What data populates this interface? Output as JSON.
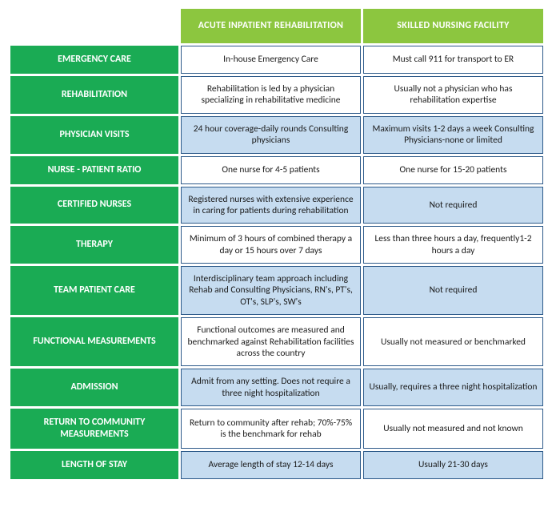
{
  "colors": {
    "header_green": "#8cc63f",
    "row_header_green": "#1aab54",
    "cell_border": "#2d5a8a",
    "cell_bg_white": "#ffffff",
    "cell_bg_blue": "#c6dcf0",
    "text": "#1a1a1a",
    "header_text": "#ffffff"
  },
  "columns": [
    "ACUTE INPATIENT REHABILITATION",
    "SKILLED NURSING FACILITY"
  ],
  "rows": [
    {
      "label": "EMERGENCY CARE",
      "cells": [
        "In-house Emergency Care",
        "Must call 911 for transport to ER"
      ],
      "shade": "white"
    },
    {
      "label": "REHABILITATION",
      "cells": [
        "Rehabilitation is led by a physician specializing in rehabilitative medicine",
        "Usually not a physician who has rehabilitation expertise"
      ],
      "shade": "white"
    },
    {
      "label": "PHYSICIAN VISITS",
      "cells": [
        "24 hour coverage-daily rounds Consulting physicians",
        "Maximum visits 1-2 days a week Consulting Physicians-none or limited"
      ],
      "shade": "blue"
    },
    {
      "label": "NURSE - PATIENT RATIO",
      "cells": [
        "One nurse for 4-5 patients",
        "One nurse for 15-20 patients"
      ],
      "shade": "white"
    },
    {
      "label": "CERTIFIED NURSES",
      "cells": [
        "Registered nurses with extensive experience in caring for patients during rehabilitation",
        "Not required"
      ],
      "shade": "blue"
    },
    {
      "label": "THERAPY",
      "cells": [
        "Minimum of 3 hours of combined therapy a day or 15 hours over 7 days",
        "Less than three hours a day, frequently1-2 hours a day"
      ],
      "shade": "white"
    },
    {
      "label": "TEAM PATIENT CARE",
      "cells": [
        "Interdisciplinary team approach including Rehab and Consulting Physicians, RN's, PT's, OT's, SLP's, SW's",
        "Not required"
      ],
      "shade": "blue"
    },
    {
      "label": "FUNCTIONAL MEASUREMENTS",
      "cells": [
        "Functional outcomes are measured and benchmarked against Rehabilitation facilities across the country",
        "Usually not measured or benchmarked"
      ],
      "shade": "white"
    },
    {
      "label": "ADMISSION",
      "cells": [
        "Admit from any setting.  Does not require a three night hospitalization",
        "Usually, requires a three night hospitalization"
      ],
      "shade": "blue"
    },
    {
      "label": "RETURN TO COMMUNITY MEASUREMENTS",
      "cells": [
        "Return to community after rehab; 70%-75% is the benchmark for rehab",
        "Usually not measured and not known"
      ],
      "shade": "white"
    },
    {
      "label": "LENGTH OF STAY",
      "cells": [
        "Average length of stay 12-14 days",
        "Usually 21-30 days"
      ],
      "shade": "blue"
    }
  ]
}
